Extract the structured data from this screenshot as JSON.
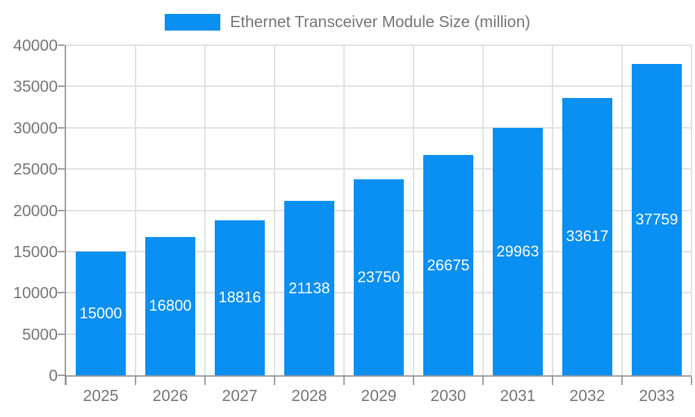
{
  "legend": {
    "label": "Ethernet Transceiver Module Size (million)"
  },
  "chart_data": {
    "type": "bar",
    "title": "Ethernet Transceiver Module Size (million)",
    "categories": [
      "2025",
      "2026",
      "2027",
      "2028",
      "2029",
      "2030",
      "2031",
      "2032",
      "2033"
    ],
    "values": [
      15000,
      16800,
      18816,
      21138,
      23750,
      26675,
      29963,
      33617,
      37759
    ],
    "xlabel": "",
    "ylabel": "",
    "ylim": [
      0,
      40000
    ],
    "yticks": [
      0,
      5000,
      10000,
      15000,
      20000,
      25000,
      30000,
      35000,
      40000
    ],
    "grid": true,
    "legend_position": "top-center",
    "value_labels": "inside-center-white",
    "colors": {
      "bar": "#0a8ff2",
      "value_label": "#ffffff",
      "axis": "#999999",
      "grid": "#e0e0e0",
      "text": "#757575",
      "background": "#ffffff"
    }
  }
}
